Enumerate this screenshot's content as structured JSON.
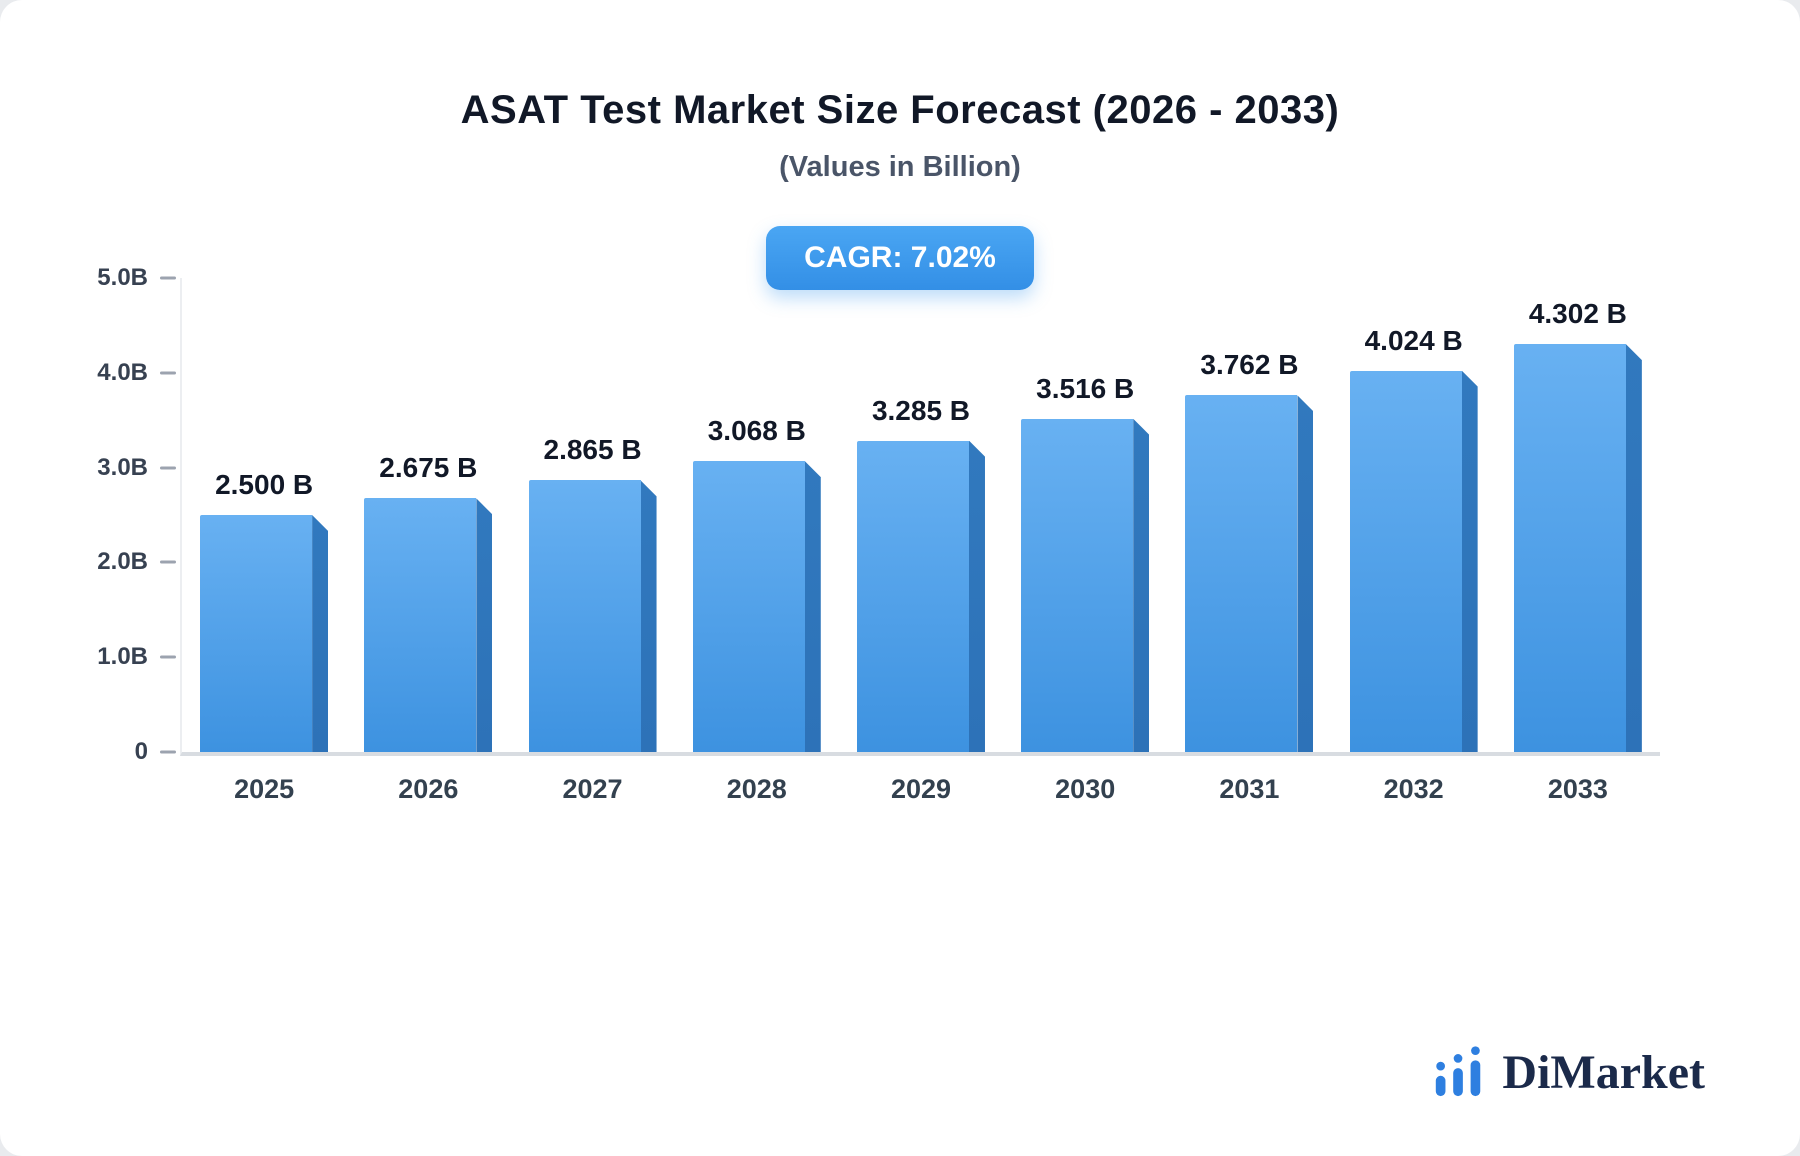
{
  "header": {
    "title": "ASAT Test Market Size Forecast (2026 - 2033)",
    "subtitle": "(Values in Billion)",
    "cagr_badge": "CAGR: 7.02%"
  },
  "footer": {
    "brand": "DiMarket",
    "logo_icon": "bar-chart-icon"
  },
  "colors": {
    "bar_face_top": "#68b1f2",
    "bar_face_bottom": "#3d92e0",
    "bar_side": "#2d72b8",
    "badge_bg": "#3e9bee",
    "axis": "#d8dce1",
    "text_dark": "#111827",
    "text_gray": "#4a5568",
    "brand": "#1b2a4a",
    "brand_blue": "#2e7fe0"
  },
  "chart_data": {
    "type": "bar",
    "title": "ASAT Test Market Size Forecast (2026 - 2033)",
    "subtitle": "(Values in Billion)",
    "xlabel": "",
    "ylabel": "",
    "ylim": [
      0,
      5.0
    ],
    "grid": false,
    "legend": false,
    "categories": [
      "2025",
      "2026",
      "2027",
      "2028",
      "2029",
      "2030",
      "2031",
      "2032",
      "2033"
    ],
    "values": [
      2.5,
      2.675,
      2.865,
      3.068,
      3.285,
      3.516,
      3.762,
      4.024,
      4.302
    ],
    "value_labels": [
      "2.500 B",
      "2.675 B",
      "2.865 B",
      "3.068 B",
      "3.285 B",
      "3.516 B",
      "3.762 B",
      "4.024 B",
      "4.302 B"
    ],
    "yticks": [
      {
        "value": 0,
        "label": "0"
      },
      {
        "value": 1,
        "label": "1.0B"
      },
      {
        "value": 2,
        "label": "2.0B"
      },
      {
        "value": 3,
        "label": "3.0B"
      },
      {
        "value": 4,
        "label": "4.0B"
      },
      {
        "value": 5,
        "label": "5.0B"
      }
    ]
  }
}
